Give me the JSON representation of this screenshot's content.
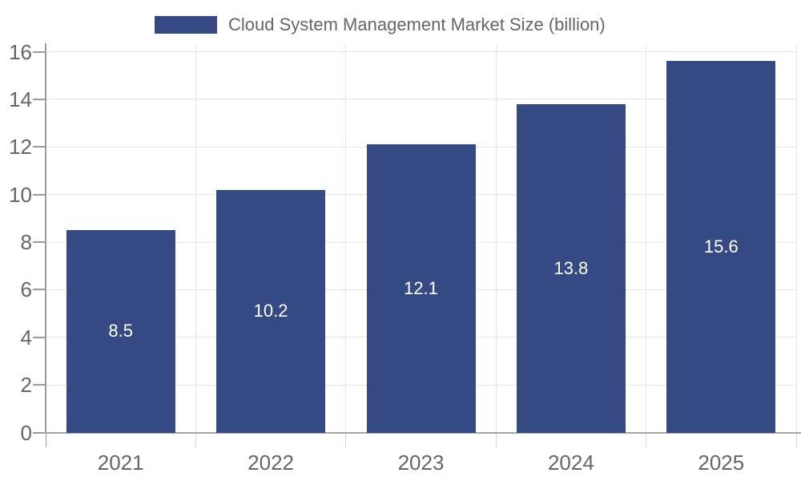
{
  "chart_data": {
    "type": "bar",
    "title": "Cloud System Management Market Size (billion)",
    "legend_entries": [
      "Cloud System Management Market Size (billion)"
    ],
    "legend_position": "top",
    "categories": [
      "2021",
      "2022",
      "2023",
      "2024",
      "2025"
    ],
    "series": [
      {
        "name": "Cloud System Management Market Size (billion)",
        "values": [
          8.5,
          10.2,
          12.1,
          13.8,
          15.6
        ]
      }
    ],
    "data_labels": [
      "8.5",
      "10.2",
      "12.1",
      "13.8",
      "15.6"
    ],
    "xlabel": "",
    "ylabel": "",
    "ylim": [
      0,
      16
    ],
    "yticks": [
      0,
      2,
      4,
      6,
      8,
      10,
      12,
      14,
      16
    ],
    "grid": true,
    "colors": {
      "bar": "#354a83",
      "value_label": "#ffffff",
      "axis_text": "#666666",
      "legend_text": "#666666",
      "gridline": "#e6e6e6",
      "y_axis_line": "#9a9a9a",
      "x_axis_line": "#a6a6a6",
      "background": "#ffffff"
    }
  }
}
